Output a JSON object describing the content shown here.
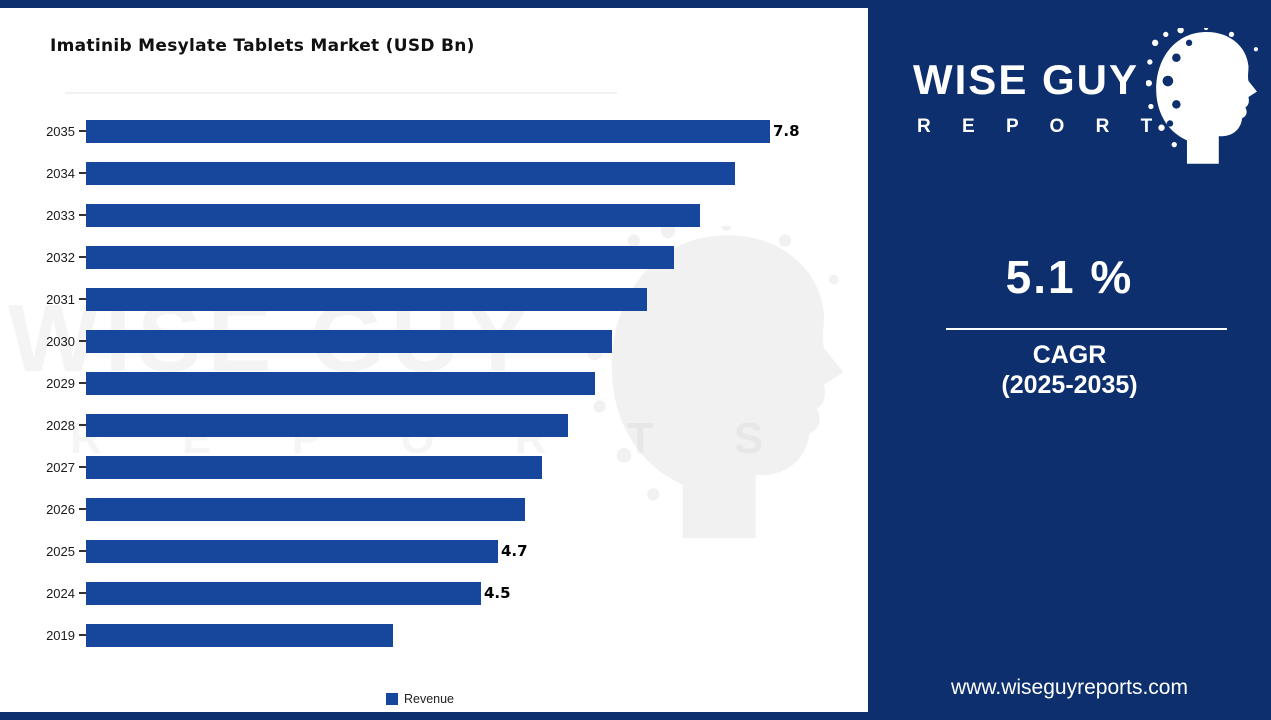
{
  "chart_data": {
    "type": "bar",
    "orientation": "horizontal",
    "title": "Imatinib Mesylate Tablets Market (USD Bn)",
    "categories": [
      "2035",
      "2034",
      "2033",
      "2032",
      "2031",
      "2030",
      "2029",
      "2028",
      "2027",
      "2026",
      "2025",
      "2024",
      "2019"
    ],
    "values": [
      7.8,
      7.4,
      7.0,
      6.7,
      6.4,
      6.0,
      5.8,
      5.5,
      5.2,
      5.0,
      4.7,
      4.5,
      3.5
    ],
    "data_labels": {
      "2035": "7.8",
      "2025": "4.7",
      "2024": "4.5"
    },
    "xlim": [
      0,
      8.5
    ],
    "grid": false,
    "legend": [
      "Revenue"
    ],
    "legend_position": "bottom",
    "bar_color": "#17479d"
  },
  "watermark": {
    "line1": "WISE GUY",
    "line2": "R E P O R T S"
  },
  "sidebar": {
    "logo_text": "WISE GUY",
    "logo_subtext": "R E P O R T S",
    "cagr_value": "5.1 %",
    "cagr_label": "CAGR",
    "cagr_period": "(2025-2035)",
    "website": "www.wiseguyreports.com",
    "bg_color": "#0d2f6d"
  }
}
